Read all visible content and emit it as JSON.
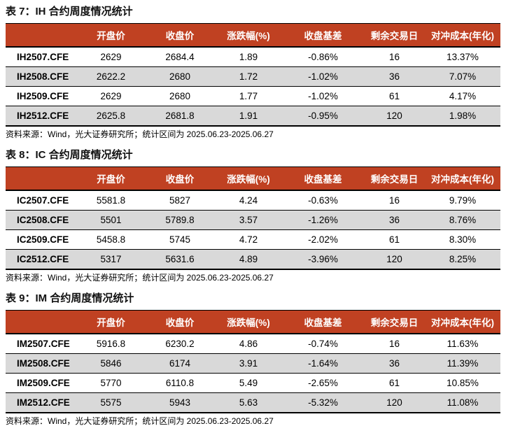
{
  "colors": {
    "header_bg": "#C04122",
    "header_text": "#FFFFFF",
    "stripe_row_bg": "#D9D9D9",
    "border": "#000000"
  },
  "tables": [
    {
      "title": "表 7：IH 合约周度情况统计",
      "columns": [
        "",
        "开盘价",
        "收盘价",
        "涨跌幅(%)",
        "收盘基差",
        "剩余交易日",
        "对冲成本(年化)"
      ],
      "rows": [
        {
          "contract": "IH2507.CFE",
          "open": "2629",
          "close": "2684.4",
          "chg": "1.89",
          "basis": "-0.86%",
          "days": "16",
          "cost": "13.37%"
        },
        {
          "contract": "IH2508.CFE",
          "open": "2622.2",
          "close": "2680",
          "chg": "1.72",
          "basis": "-1.02%",
          "days": "36",
          "cost": "7.07%"
        },
        {
          "contract": "IH2509.CFE",
          "open": "2629",
          "close": "2680",
          "chg": "1.77",
          "basis": "-1.02%",
          "days": "61",
          "cost": "4.17%"
        },
        {
          "contract": "IH2512.CFE",
          "open": "2625.8",
          "close": "2681.8",
          "chg": "1.91",
          "basis": "-0.95%",
          "days": "120",
          "cost": "1.98%"
        }
      ],
      "source": "资料来源：Wind，光大证券研究所；统计区间为 2025.06.23-2025.06.27"
    },
    {
      "title": "表 8：IC 合约周度情况统计",
      "columns": [
        "",
        "开盘价",
        "收盘价",
        "涨跌幅(%)",
        "收盘基差",
        "剩余交易日",
        "对冲成本(年化)"
      ],
      "rows": [
        {
          "contract": "IC2507.CFE",
          "open": "5581.8",
          "close": "5827",
          "chg": "4.24",
          "basis": "-0.63%",
          "days": "16",
          "cost": "9.79%"
        },
        {
          "contract": "IC2508.CFE",
          "open": "5501",
          "close": "5789.8",
          "chg": "3.57",
          "basis": "-1.26%",
          "days": "36",
          "cost": "8.76%"
        },
        {
          "contract": "IC2509.CFE",
          "open": "5458.8",
          "close": "5745",
          "chg": "4.72",
          "basis": "-2.02%",
          "days": "61",
          "cost": "8.30%"
        },
        {
          "contract": "IC2512.CFE",
          "open": "5317",
          "close": "5631.6",
          "chg": "4.89",
          "basis": "-3.96%",
          "days": "120",
          "cost": "8.25%"
        }
      ],
      "source": "资料来源：Wind，光大证券研究所；统计区间为 2025.06.23-2025.06.27"
    },
    {
      "title": "表 9：IM 合约周度情况统计",
      "columns": [
        "",
        "开盘价",
        "收盘价",
        "涨跌幅(%)",
        "收盘基差",
        "剩余交易日",
        "对冲成本(年化)"
      ],
      "rows": [
        {
          "contract": "IM2507.CFE",
          "open": "5916.8",
          "close": "6230.2",
          "chg": "4.86",
          "basis": "-0.74%",
          "days": "16",
          "cost": "11.63%"
        },
        {
          "contract": "IM2508.CFE",
          "open": "5846",
          "close": "6174",
          "chg": "3.91",
          "basis": "-1.64%",
          "days": "36",
          "cost": "11.39%"
        },
        {
          "contract": "IM2509.CFE",
          "open": "5770",
          "close": "6110.8",
          "chg": "5.49",
          "basis": "-2.65%",
          "days": "61",
          "cost": "10.85%"
        },
        {
          "contract": "IM2512.CFE",
          "open": "5575",
          "close": "5943",
          "chg": "5.63",
          "basis": "-5.32%",
          "days": "120",
          "cost": "11.08%"
        }
      ],
      "source": "资料来源：Wind，光大证券研究所；统计区间为 2025.06.23-2025.06.27"
    }
  ]
}
